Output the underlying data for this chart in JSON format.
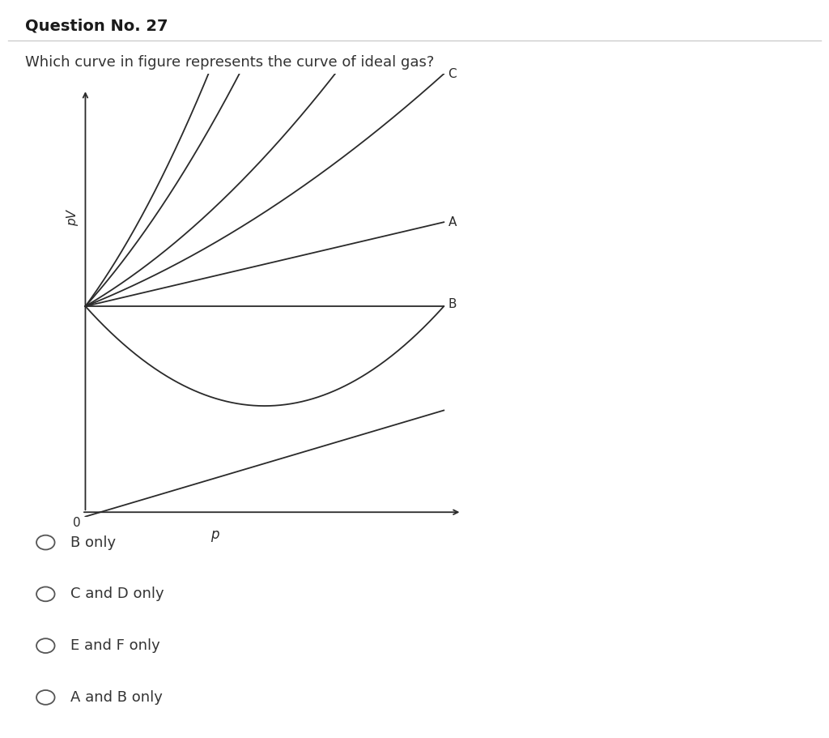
{
  "title": "Question No. 27",
  "question": "Which curve in figure represents the curve of ideal gas?",
  "background_color": "#ffffff",
  "text_color": "#333333",
  "curve_color": "#2a2a2a",
  "options": [
    "B only",
    "C and D only",
    "E and F only",
    "A and B only"
  ],
  "pv0": 0.5,
  "p_max": 10
}
